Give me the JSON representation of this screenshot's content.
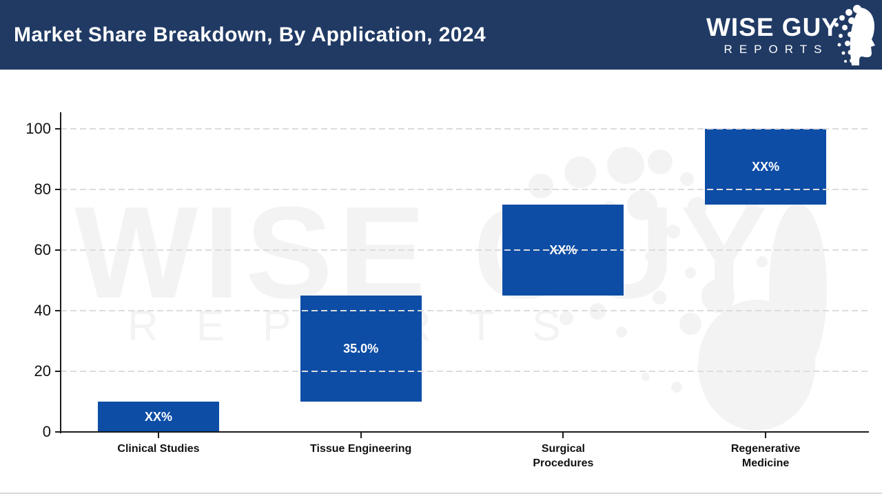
{
  "header": {
    "title": "Market Share Breakdown, By Application, 2024",
    "brand_line1": "WISE GUY",
    "brand_line2": "REPORTS"
  },
  "watermark": {
    "line1": "WISE GUY",
    "line2": "REPORTS"
  },
  "chart_data": {
    "type": "bar",
    "subtype": "waterfall",
    "title": "Market Share Breakdown, By Application, 2024",
    "categories": [
      "Clinical Studies",
      "Tissue Engineering",
      "Surgical\nProcedures",
      "Regenerative\nMedicine"
    ],
    "segments": [
      {
        "category": "Clinical Studies",
        "start": 0,
        "end": 10,
        "label": "XX%"
      },
      {
        "category": "Tissue Engineering",
        "start": 10,
        "end": 45,
        "label": "35.0%"
      },
      {
        "category": "Surgical Procedures",
        "start": 45,
        "end": 75,
        "label": "XX%"
      },
      {
        "category": "Regenerative Medicine",
        "start": 75,
        "end": 100,
        "label": "XX%"
      }
    ],
    "yticks": [
      0,
      20,
      40,
      60,
      80,
      100
    ],
    "ylim": [
      0,
      100
    ],
    "legend": "none",
    "grid": "horizontal-dashed",
    "bar_color": "#0d4da6",
    "bar_label_color": "#ffffff"
  },
  "colors": {
    "header_bg": "#203a64",
    "bar": "#0d4da6",
    "axis": "#1a1a1a",
    "grid": "#dcdcdc",
    "watermark": "#f3f3f3"
  }
}
